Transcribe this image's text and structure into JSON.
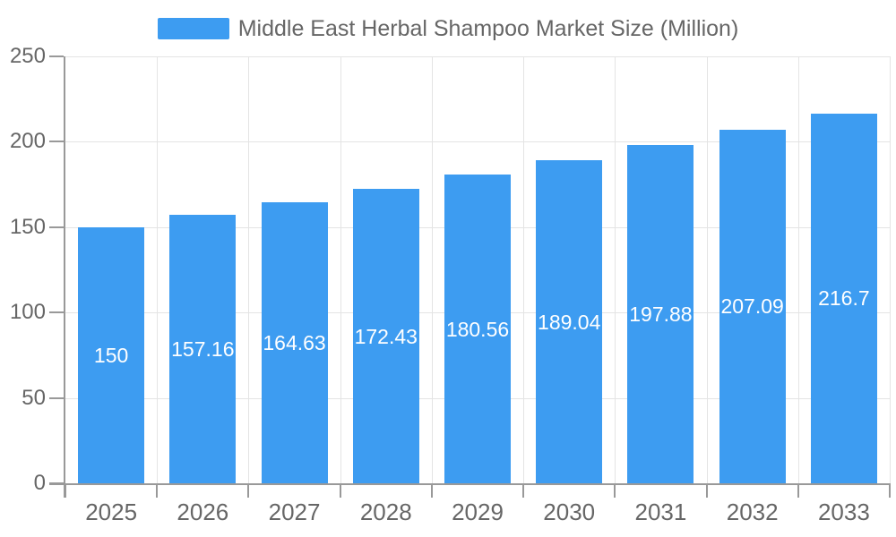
{
  "chart_data": {
    "type": "bar",
    "title": "",
    "legend": {
      "label": "Middle East Herbal Shampoo Market Size (Million)",
      "position": "top"
    },
    "categories": [
      "2025",
      "2026",
      "2027",
      "2028",
      "2029",
      "2030",
      "2031",
      "2032",
      "2033"
    ],
    "values": [
      150,
      157.16,
      164.63,
      172.43,
      180.56,
      189.04,
      197.88,
      207.09,
      216.7
    ],
    "value_labels": [
      "150",
      "157.16",
      "164.63",
      "172.43",
      "180.56",
      "189.04",
      "197.88",
      "207.09",
      "216.7"
    ],
    "xlabel": "",
    "ylabel": "",
    "ylim": [
      0,
      250
    ],
    "yticks": [
      0,
      50,
      100,
      150,
      200,
      250
    ],
    "grid": true,
    "colors": {
      "bar": "#3D9CF1",
      "axis_text": "#666666",
      "axis_line": "#999999",
      "gridline": "#e4e4e4",
      "value_label": "#ffffff"
    }
  }
}
